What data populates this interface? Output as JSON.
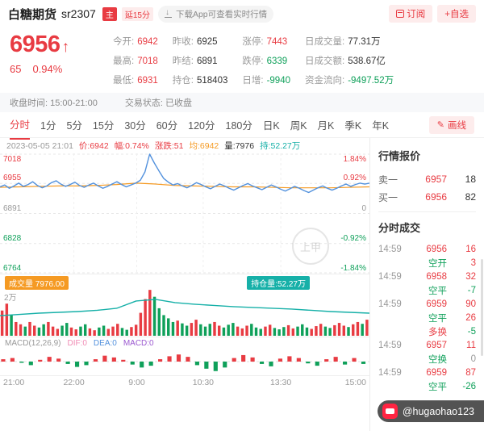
{
  "header": {
    "title": "白糖期货",
    "code": "sr2307",
    "badge_main": "主",
    "badge_delay": "延15分",
    "download_label": "下载App可查看实时行情",
    "subscribe_label": "订阅",
    "add_watchlist_label": "+自选"
  },
  "quote": {
    "price": "6956",
    "arrow": "↑",
    "change": "65",
    "change_pct": "0.94%",
    "stat_columns": [
      [
        {
          "label": "今开:",
          "value": "6942",
          "color": "red"
        },
        {
          "label": "最高:",
          "value": "7018",
          "color": "red"
        },
        {
          "label": "最低:",
          "value": "6931",
          "color": "red"
        }
      ],
      [
        {
          "label": "昨收:",
          "value": "6925",
          "color": "dark"
        },
        {
          "label": "昨结:",
          "value": "6891",
          "color": "dark"
        },
        {
          "label": "持仓:",
          "value": "518403",
          "color": "dark"
        }
      ],
      [
        {
          "label": "涨停:",
          "value": "7443",
          "color": "red"
        },
        {
          "label": "跌停:",
          "value": "6339",
          "color": "green"
        },
        {
          "label": "日增:",
          "value": "-9940",
          "color": "green"
        }
      ],
      [
        {
          "label": "日成交量:",
          "value": "77.31万",
          "color": "dark"
        },
        {
          "label": "日成交额:",
          "value": "538.67亿",
          "color": "dark"
        },
        {
          "label": "资金流向:",
          "value": "-9497.52万",
          "color": "green"
        }
      ]
    ]
  },
  "session": {
    "close_time_label": "收盘时间: 15:00-21:00",
    "status_label": "交易状态: 已收盘"
  },
  "tabs": [
    "分时",
    "1分",
    "5分",
    "15分",
    "30分",
    "60分",
    "120分",
    "180分",
    "日K",
    "周K",
    "月K",
    "季K",
    "年K"
  ],
  "active_tab": "分时",
  "draw_button": "画线",
  "chart_data": {
    "type": "line",
    "title": "白糖期货 sr2307 分时图",
    "info": {
      "datetime": "2023-05-05 21:01",
      "price_label": "价:6942",
      "amp_label": "幅:0.74%",
      "chg_label": "涨跌:51",
      "avg_label": "均:6942",
      "vol_label": "量:7976",
      "oi_label": "持:52.27万"
    },
    "y_left": [
      "7018",
      "6955",
      "6891",
      "6828",
      "6764"
    ],
    "y_right": [
      "1.84%",
      "0.92%",
      "0",
      "-0.92%",
      "-1.84%"
    ],
    "price_range": [
      6764,
      7018
    ],
    "x_labels": [
      {
        "t": "21:00",
        "pos": 0
      },
      {
        "t": "22:00",
        "pos": 0.2
      },
      {
        "t": "9:00",
        "pos": 0.37
      },
      {
        "t": "10:30",
        "pos": 0.55
      },
      {
        "t": "13:30",
        "pos": 0.76
      },
      {
        "t": "15:00",
        "pos": 1
      }
    ],
    "price": [
      6948,
      6952,
      6945,
      6950,
      6956,
      6949,
      6953,
      6959,
      6951,
      6946,
      6950,
      6957,
      6961,
      6954,
      6949,
      6953,
      6958,
      6951,
      6947,
      6952,
      6956,
      6950,
      6945,
      6949,
      6954,
      6959,
      6953,
      6948,
      6952,
      6956,
      6962,
      6980,
      7018,
      6999,
      6982,
      6966,
      6958,
      6952,
      6955,
      6950,
      6946,
      6951,
      6957,
      6953,
      6948,
      6944,
      6949,
      6954,
      6950,
      6945,
      6941,
      6946,
      6951,
      6955,
      6950,
      6946,
      6942,
      6947,
      6952,
      6948,
      6943,
      6939,
      6944,
      6949,
      6945,
      6940,
      6936,
      6941,
      6946,
      6950,
      6945,
      6941,
      6945,
      6950,
      6954,
      6949,
      6953,
      6956,
      6954,
      6956
    ],
    "avg": [
      6947,
      6948,
      6949,
      6950,
      6950,
      6951,
      6953,
      6956,
      6954,
      6951,
      6950,
      6949,
      6948,
      6948,
      6947,
      6946,
      6946,
      6946,
      6947,
      6948
    ],
    "volume": [
      0.55,
      0.7,
      0.45,
      0.3,
      0.25,
      0.2,
      0.3,
      0.22,
      0.18,
      0.25,
      0.3,
      0.2,
      0.15,
      0.22,
      0.28,
      0.18,
      0.14,
      0.2,
      0.25,
      0.16,
      0.12,
      0.18,
      0.22,
      0.15,
      0.2,
      0.26,
      0.17,
      0.13,
      0.19,
      0.24,
      0.5,
      0.8,
      1.0,
      0.85,
      0.6,
      0.45,
      0.38,
      0.3,
      0.33,
      0.27,
      0.22,
      0.28,
      0.35,
      0.25,
      0.2,
      0.26,
      0.3,
      0.22,
      0.18,
      0.24,
      0.28,
      0.2,
      0.16,
      0.22,
      0.26,
      0.18,
      0.15,
      0.2,
      0.24,
      0.17,
      0.14,
      0.19,
      0.23,
      0.16,
      0.2,
      0.25,
      0.18,
      0.15,
      0.21,
      0.26,
      0.2,
      0.17,
      0.23,
      0.28,
      0.22,
      0.19,
      0.25,
      0.3,
      0.26,
      0.35
    ],
    "oi": [
      0.42,
      0.45,
      0.48,
      0.5,
      0.52,
      0.55,
      0.6,
      0.78,
      0.82,
      0.74,
      0.7,
      0.67,
      0.64,
      0.62,
      0.6,
      0.58,
      0.55,
      0.52,
      0.5,
      0.48
    ],
    "macd": [
      0.2,
      0.3,
      -0.1,
      -0.3,
      0.15,
      0.4,
      0.25,
      -0.2,
      -0.45,
      -0.3,
      0.2,
      0.5,
      0.35,
      0.15,
      -0.25,
      -0.5,
      -0.35,
      0.2,
      0.45,
      0.6,
      0.4,
      -0.3,
      -0.6,
      -0.8,
      -0.5,
      0.3,
      0.55,
      0.35,
      -0.2,
      -0.4,
      0.25,
      0.45,
      0.3,
      -0.15,
      -0.35,
      0.2,
      0.4,
      -0.25,
      0.3,
      -0.2
    ],
    "volume_label": "成交量 7976.00",
    "oi_chip_label": "持仓量:52.27万",
    "vol_axis_label": "2万",
    "macd_legend": {
      "name": "MACD(12,26,9)",
      "dif": "DIF:0",
      "dea": "DEA:0",
      "macd": "MACD:0"
    }
  },
  "sidebar": {
    "quote_header": "行情报价",
    "levels": [
      {
        "label": "卖一",
        "price": "6957",
        "qty": "18"
      },
      {
        "label": "买一",
        "price": "6956",
        "qty": "82"
      }
    ],
    "trades_header": "分时成交",
    "trades": [
      {
        "time": "14:59",
        "name": "6956",
        "val": "16"
      },
      {
        "time": "",
        "name": "空开",
        "val": "3"
      },
      {
        "time": "14:59",
        "name": "6958",
        "val": "32"
      },
      {
        "time": "",
        "name": "空平",
        "val": "-7"
      },
      {
        "time": "14:59",
        "name": "6959",
        "val": "90"
      },
      {
        "time": "",
        "name": "空平",
        "val": "26"
      },
      {
        "time": "",
        "name": "多换",
        "val": "-5"
      },
      {
        "time": "14:59",
        "name": "6957",
        "val": "11"
      },
      {
        "time": "",
        "name": "空换",
        "val": "0"
      },
      {
        "time": "14:59",
        "name": "6959",
        "val": "87"
      },
      {
        "time": "",
        "name": "空平",
        "val": "-26"
      }
    ]
  },
  "watermark": {
    "center": "上甲",
    "handle": "@hugaohao123"
  },
  "colors": {
    "red": "#e83b42",
    "green": "#0fa05a",
    "blue": "#5291dd",
    "orange": "#f59a23",
    "teal": "#16b0a8"
  }
}
